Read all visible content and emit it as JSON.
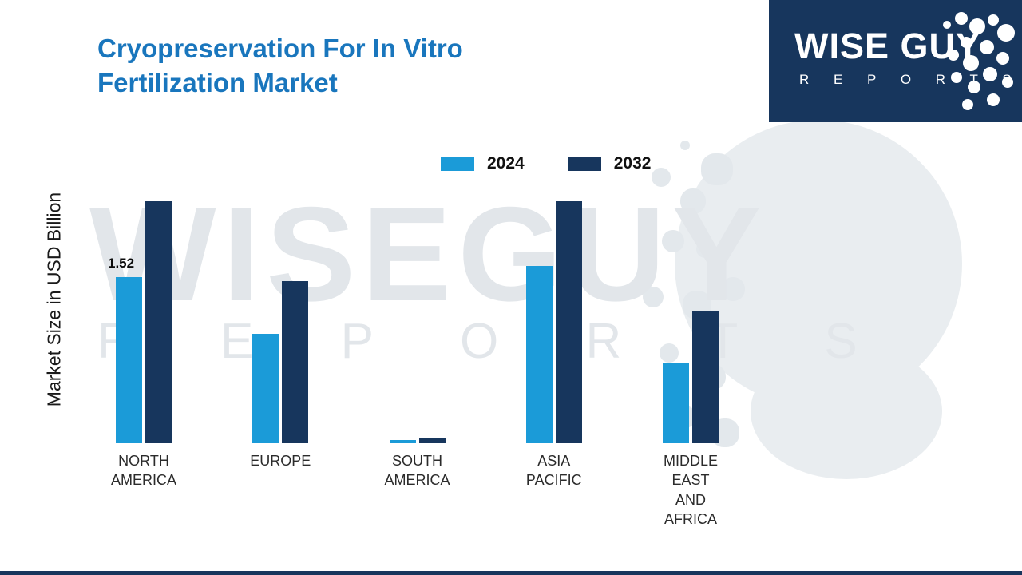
{
  "title": "Cryopreservation For In Vitro Fertilization Market",
  "logo": {
    "name_line": "WISE GUY",
    "reports_line": "R E P O R T S"
  },
  "watermark": {
    "name_line": "WISEGUY",
    "reports_line": "R E P O R T S"
  },
  "colors": {
    "accent_blue": "#1b9bd8",
    "navy": "#17365d",
    "title_blue": "#1976bd"
  },
  "chart_data": {
    "type": "bar",
    "title": "Cryopreservation For In Vitro Fertilization Market",
    "ylabel": "Market Size in USD Billion",
    "xlabel": "",
    "grid": false,
    "legend_position": "top",
    "ylim": [
      0,
      2.3
    ],
    "categories": [
      "NORTH AMERICA",
      "EUROPE",
      "SOUTH AMERICA",
      "ASIA PACIFIC",
      "MIDDLE EAST AND AFRICA"
    ],
    "category_lines": [
      [
        "NORTH",
        "AMERICA"
      ],
      [
        "EUROPE"
      ],
      [
        "SOUTH",
        "AMERICA"
      ],
      [
        "ASIA",
        "PACIFIC"
      ],
      [
        "MIDDLE",
        "EAST",
        "AND",
        "AFRICA"
      ]
    ],
    "series": [
      {
        "name": "2024",
        "color": "#1b9bd8",
        "values": [
          1.52,
          1.0,
          0.03,
          1.62,
          0.74
        ]
      },
      {
        "name": "2032",
        "color": "#17365d",
        "values": [
          2.21,
          1.48,
          0.05,
          2.21,
          1.2
        ]
      }
    ],
    "annotations": [
      {
        "category_index": 0,
        "series": "2024",
        "text": "1.52"
      }
    ]
  }
}
